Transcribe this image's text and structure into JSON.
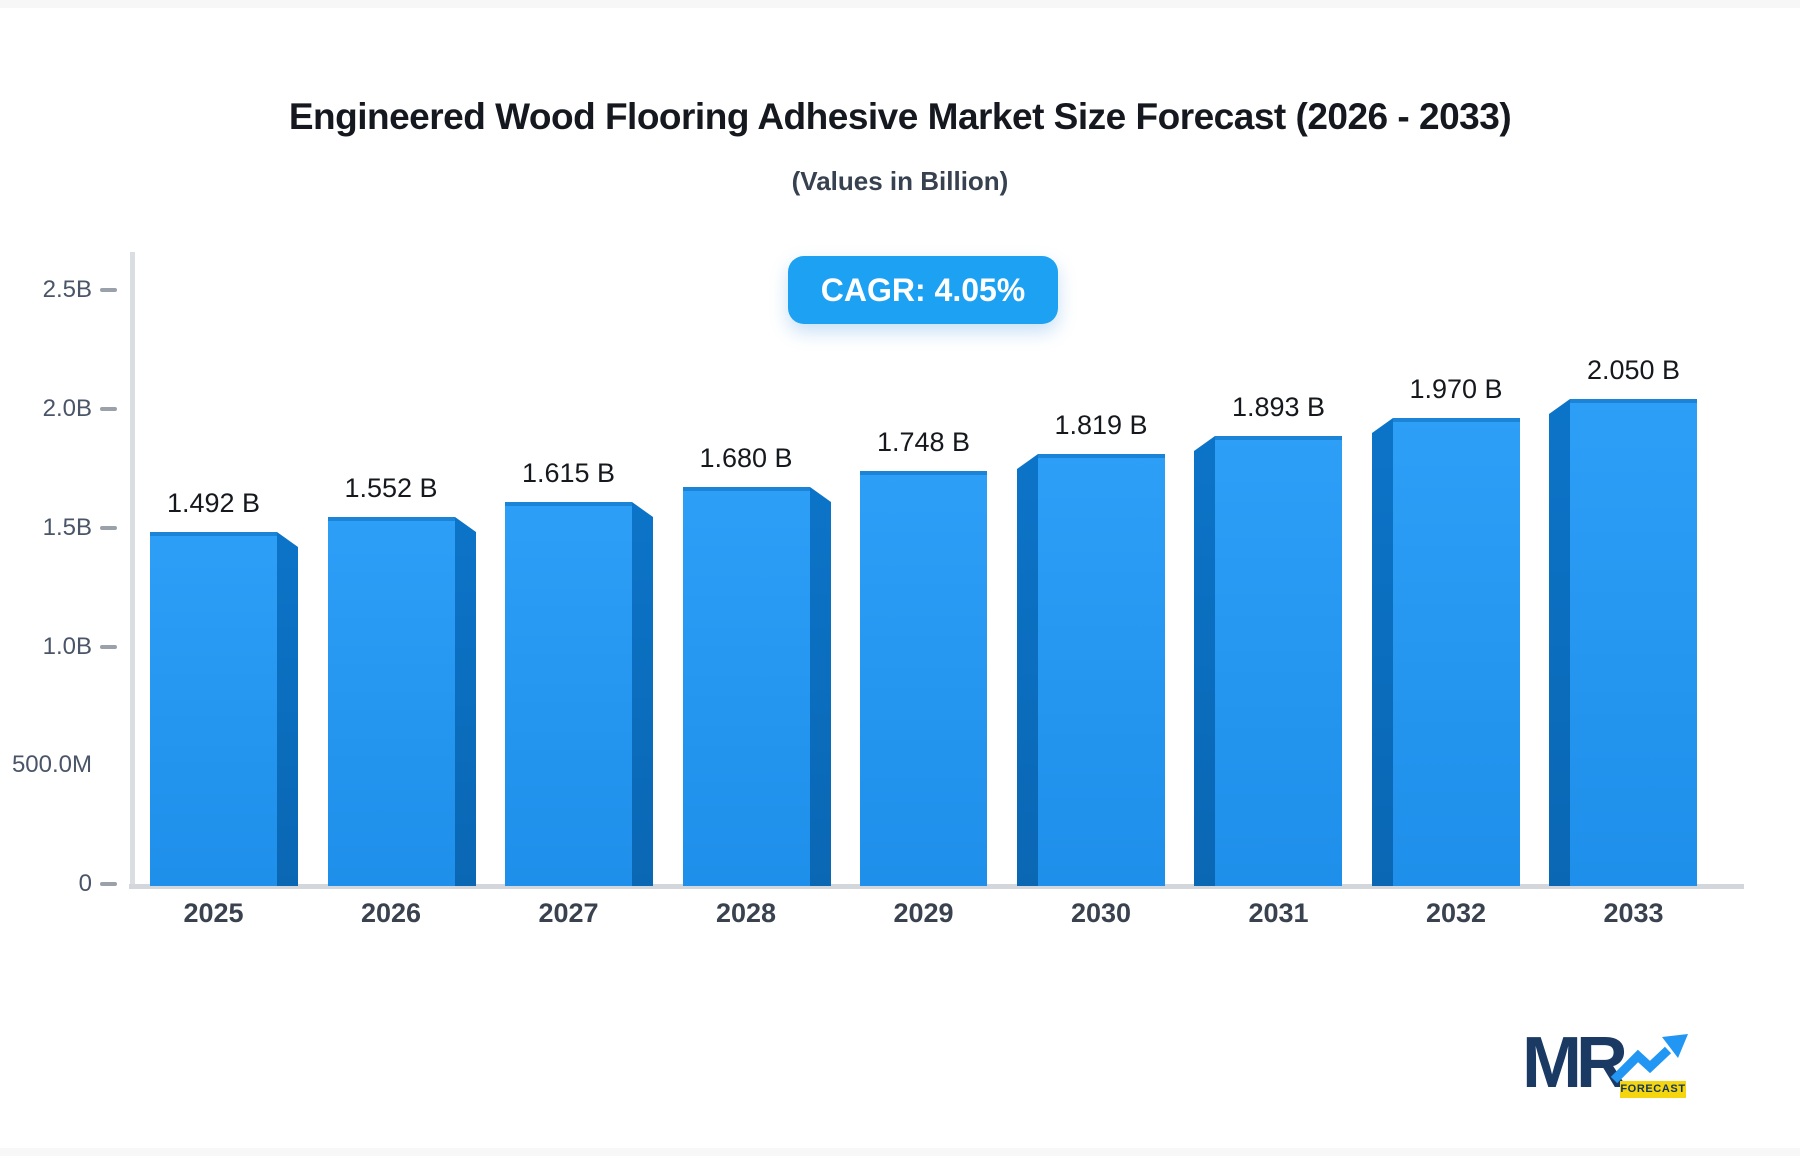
{
  "header": {
    "title": "Engineered Wood Flooring Adhesive Market Size Forecast (2026 - 2033)",
    "subtitle": "(Values in Billion)"
  },
  "cagr_badge": {
    "label": "CAGR: 4.05%",
    "color": "#1da1f2"
  },
  "chart_data": {
    "type": "bar",
    "title": "Engineered Wood Flooring Adhesive Market Size Forecast (2026 - 2033)",
    "subtitle": "(Values in Billion)",
    "cagr": "4.05%",
    "categories": [
      "2025",
      "2026",
      "2027",
      "2028",
      "2029",
      "2030",
      "2031",
      "2032",
      "2033"
    ],
    "values": [
      1.492,
      1.552,
      1.615,
      1.68,
      1.748,
      1.819,
      1.893,
      1.97,
      2.05
    ],
    "value_labels": [
      "1.492 B",
      "1.552 B",
      "1.615 B",
      "1.680 B",
      "1.748 B",
      "1.819 B",
      "1.893 B",
      "1.970 B",
      "2.050 B"
    ],
    "xlabel": "",
    "ylabel": "",
    "ylim": [
      0,
      2.5
    ],
    "y_ticks": [
      {
        "label": "2.5B",
        "value": 2.5,
        "tick_mark": true
      },
      {
        "label": "2.0B",
        "value": 2.0,
        "tick_mark": true
      },
      {
        "label": "1.5B",
        "value": 1.5,
        "tick_mark": true
      },
      {
        "label": "1.0B",
        "value": 1.0,
        "tick_mark": true
      },
      {
        "label": "500.0M",
        "value": 0.5,
        "tick_mark": false
      },
      {
        "label": "0",
        "value": 0.0,
        "tick_mark": true
      }
    ],
    "grid": false,
    "legend": false,
    "bar_front_color": "#2196f3",
    "bar_side_color": "#0b6fc0",
    "bar_3d_perspective": "center"
  },
  "logo": {
    "mr_text": "MR",
    "forecast_text": "FORECAST",
    "navy": "#1b3a63",
    "yellow": "#f5d60e",
    "arrow_blue": "#2196f3"
  }
}
